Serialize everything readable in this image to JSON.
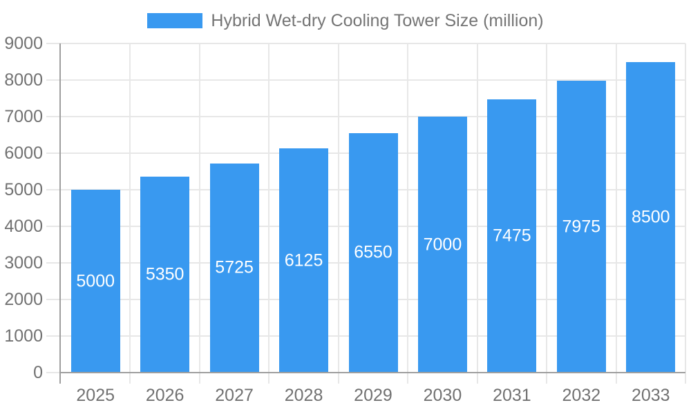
{
  "legend": {
    "label": "Hybrid Wet-dry Cooling Tower Size (million)"
  },
  "colors": {
    "bar": "#3999F0",
    "grid": "#E7E7E7",
    "axis_line": "#9E9E9E",
    "axis_text": "#717171",
    "legend_text": "#757575",
    "bar_label_text": "#FFFFFF",
    "background": "#FFFFFF"
  },
  "chart_data": {
    "type": "bar",
    "title": "Hybrid Wet-dry Cooling Tower Size (million)",
    "series_name": "Hybrid Wet-dry Cooling Tower Size (million)",
    "categories": [
      "2025",
      "2026",
      "2027",
      "2028",
      "2029",
      "2030",
      "2031",
      "2032",
      "2033"
    ],
    "values": [
      5000,
      5350,
      5725,
      6125,
      6550,
      7000,
      7475,
      7975,
      8500
    ],
    "xlabel": "",
    "ylabel": "",
    "ylim": [
      0,
      9000
    ],
    "y_ticks": [
      0,
      1000,
      2000,
      3000,
      4000,
      5000,
      6000,
      7000,
      8000,
      9000
    ],
    "grid": true,
    "legend_position": "top",
    "value_label_position": "inside-center"
  }
}
